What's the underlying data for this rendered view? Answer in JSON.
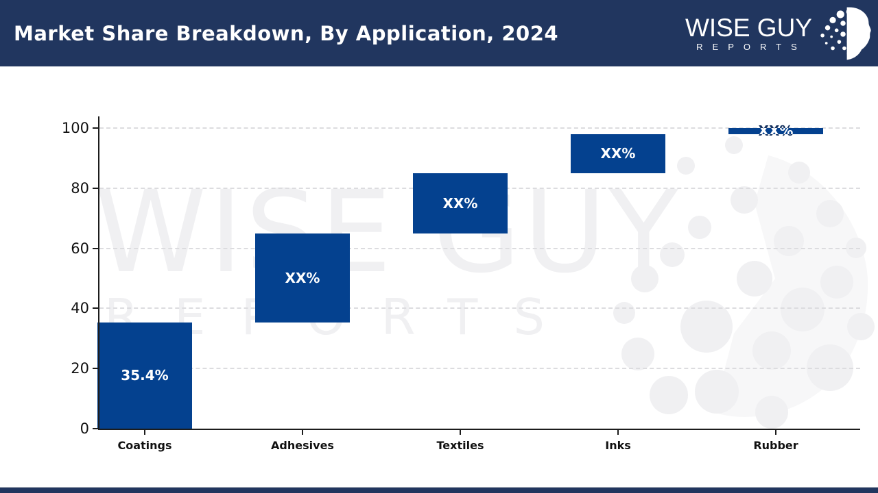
{
  "header": {
    "title": "Market Share Breakdown, By Application, 2024",
    "logo": {
      "line1": "WISE GUY",
      "line2": "REPORTS"
    }
  },
  "watermark": {
    "line1": "WISE GUY",
    "line2": "REPORTS"
  },
  "colors": {
    "header_bg": "#21365f",
    "bar": "#04418f",
    "bar_label_on_bar": "#ffffff",
    "bar_label_off_bar": "#16325f",
    "grid": "#dcdcdf",
    "axis": "#1c1c1c",
    "tick_text": "#111111",
    "watermark": "#f0f0f2"
  },
  "chart_data": {
    "type": "bar",
    "subtype": "waterfall",
    "title": "Market Share Breakdown, By Application, 2024",
    "categories": [
      "Coatings",
      "Adhesives",
      "Textiles",
      "Inks",
      "Rubber"
    ],
    "segments": [
      {
        "category": "Coatings",
        "start": 0,
        "end": 35.4,
        "label": "35.4%"
      },
      {
        "category": "Adhesives",
        "start": 35.4,
        "end": 65,
        "label": "XX%"
      },
      {
        "category": "Textiles",
        "start": 65,
        "end": 85,
        "label": "XX%"
      },
      {
        "category": "Inks",
        "start": 85,
        "end": 98,
        "label": "XX%"
      },
      {
        "category": "Rubber",
        "start": 98,
        "end": 100,
        "label": "XX%"
      }
    ],
    "yticks": [
      0,
      20,
      40,
      60,
      80,
      100
    ],
    "ylim": [
      0,
      104
    ],
    "xlabel": "",
    "ylabel": "",
    "grid": "horizontal-dashed",
    "legend": "none"
  }
}
